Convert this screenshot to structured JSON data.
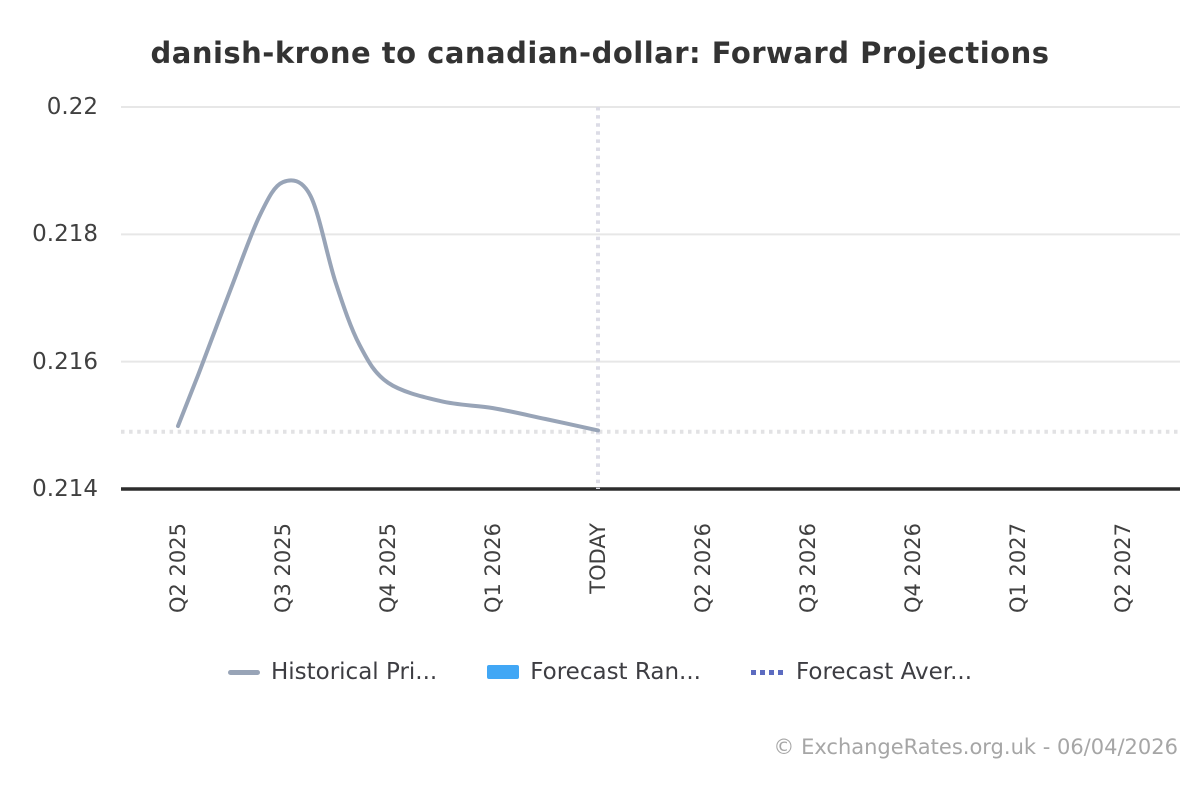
{
  "title": "danish-krone to canadian-dollar: Forward Projections",
  "footer": "© ExchangeRates.org.uk - 06/04/2026",
  "colors": {
    "historical_line": "#98a4b7",
    "forecast_range_swatch": "#41a7f5",
    "forecast_average_swatch": "#5c6bc0",
    "gridline": "#e7e7e7",
    "axis_line": "#2d2d2d",
    "today_dotted_line": "#dcdce6",
    "average_dotted_line": "#e2e2e4",
    "title_text": "#333333",
    "tick_text": "#404040",
    "footer_text": "#a6a6a6"
  },
  "legend": {
    "items": [
      {
        "label": "Historical Pri...",
        "swatch": "line",
        "color": "#98a4b7"
      },
      {
        "label": "Forecast Ran...",
        "swatch": "rect",
        "color": "#41a7f5"
      },
      {
        "label": "Forecast Aver...",
        "swatch": "dotted",
        "color": "#5c6bc0"
      }
    ]
  },
  "chart_data": {
    "type": "line",
    "title": "danish-krone to canadian-dollar: Forward Projections",
    "x_categories": [
      "Q2 2025",
      "Q3 2025",
      "Q4 2025",
      "Q1 2026",
      "TODAY",
      "Q2 2026",
      "Q3 2026",
      "Q4 2026",
      "Q1 2027",
      "Q2 2027"
    ],
    "y_tick_labels": [
      "0.214",
      "0.216",
      "0.218",
      "0.22"
    ],
    "y_ticks": [
      0.214,
      0.216,
      0.218,
      0.22
    ],
    "ylim": [
      0.214,
      0.22
    ],
    "grid": "horizontal",
    "legend_position": "bottom",
    "today_marker_index": 4,
    "series": [
      {
        "name": "Historical Price",
        "type": "line",
        "color": "#98a4b7",
        "quarterly_values": {
          "Q2 2025": 0.215,
          "Q3 2025": 0.2188,
          "Q4 2025": 0.2157,
          "Q1 2026": 0.2153,
          "TODAY": 0.2149
        },
        "points": [
          {
            "t": 0.0,
            "v": 0.21499
          },
          {
            "t": 0.21,
            "v": 0.21587
          },
          {
            "t": 0.5,
            "v": 0.21713
          },
          {
            "t": 0.78,
            "v": 0.2183
          },
          {
            "t": 1.0,
            "v": 0.21882
          },
          {
            "t": 1.26,
            "v": 0.21861
          },
          {
            "t": 1.5,
            "v": 0.21725
          },
          {
            "t": 1.73,
            "v": 0.21626
          },
          {
            "t": 2.0,
            "v": 0.21567
          },
          {
            "t": 2.5,
            "v": 0.21538
          },
          {
            "t": 3.0,
            "v": 0.21527
          },
          {
            "t": 3.5,
            "v": 0.2151
          },
          {
            "t": 4.0,
            "v": 0.21492
          }
        ]
      },
      {
        "name": "Forecast Average",
        "type": "horizontal-dotted-line",
        "value": 0.2149
      },
      {
        "name": "Forecast Range",
        "type": "band",
        "values": []
      }
    ]
  }
}
